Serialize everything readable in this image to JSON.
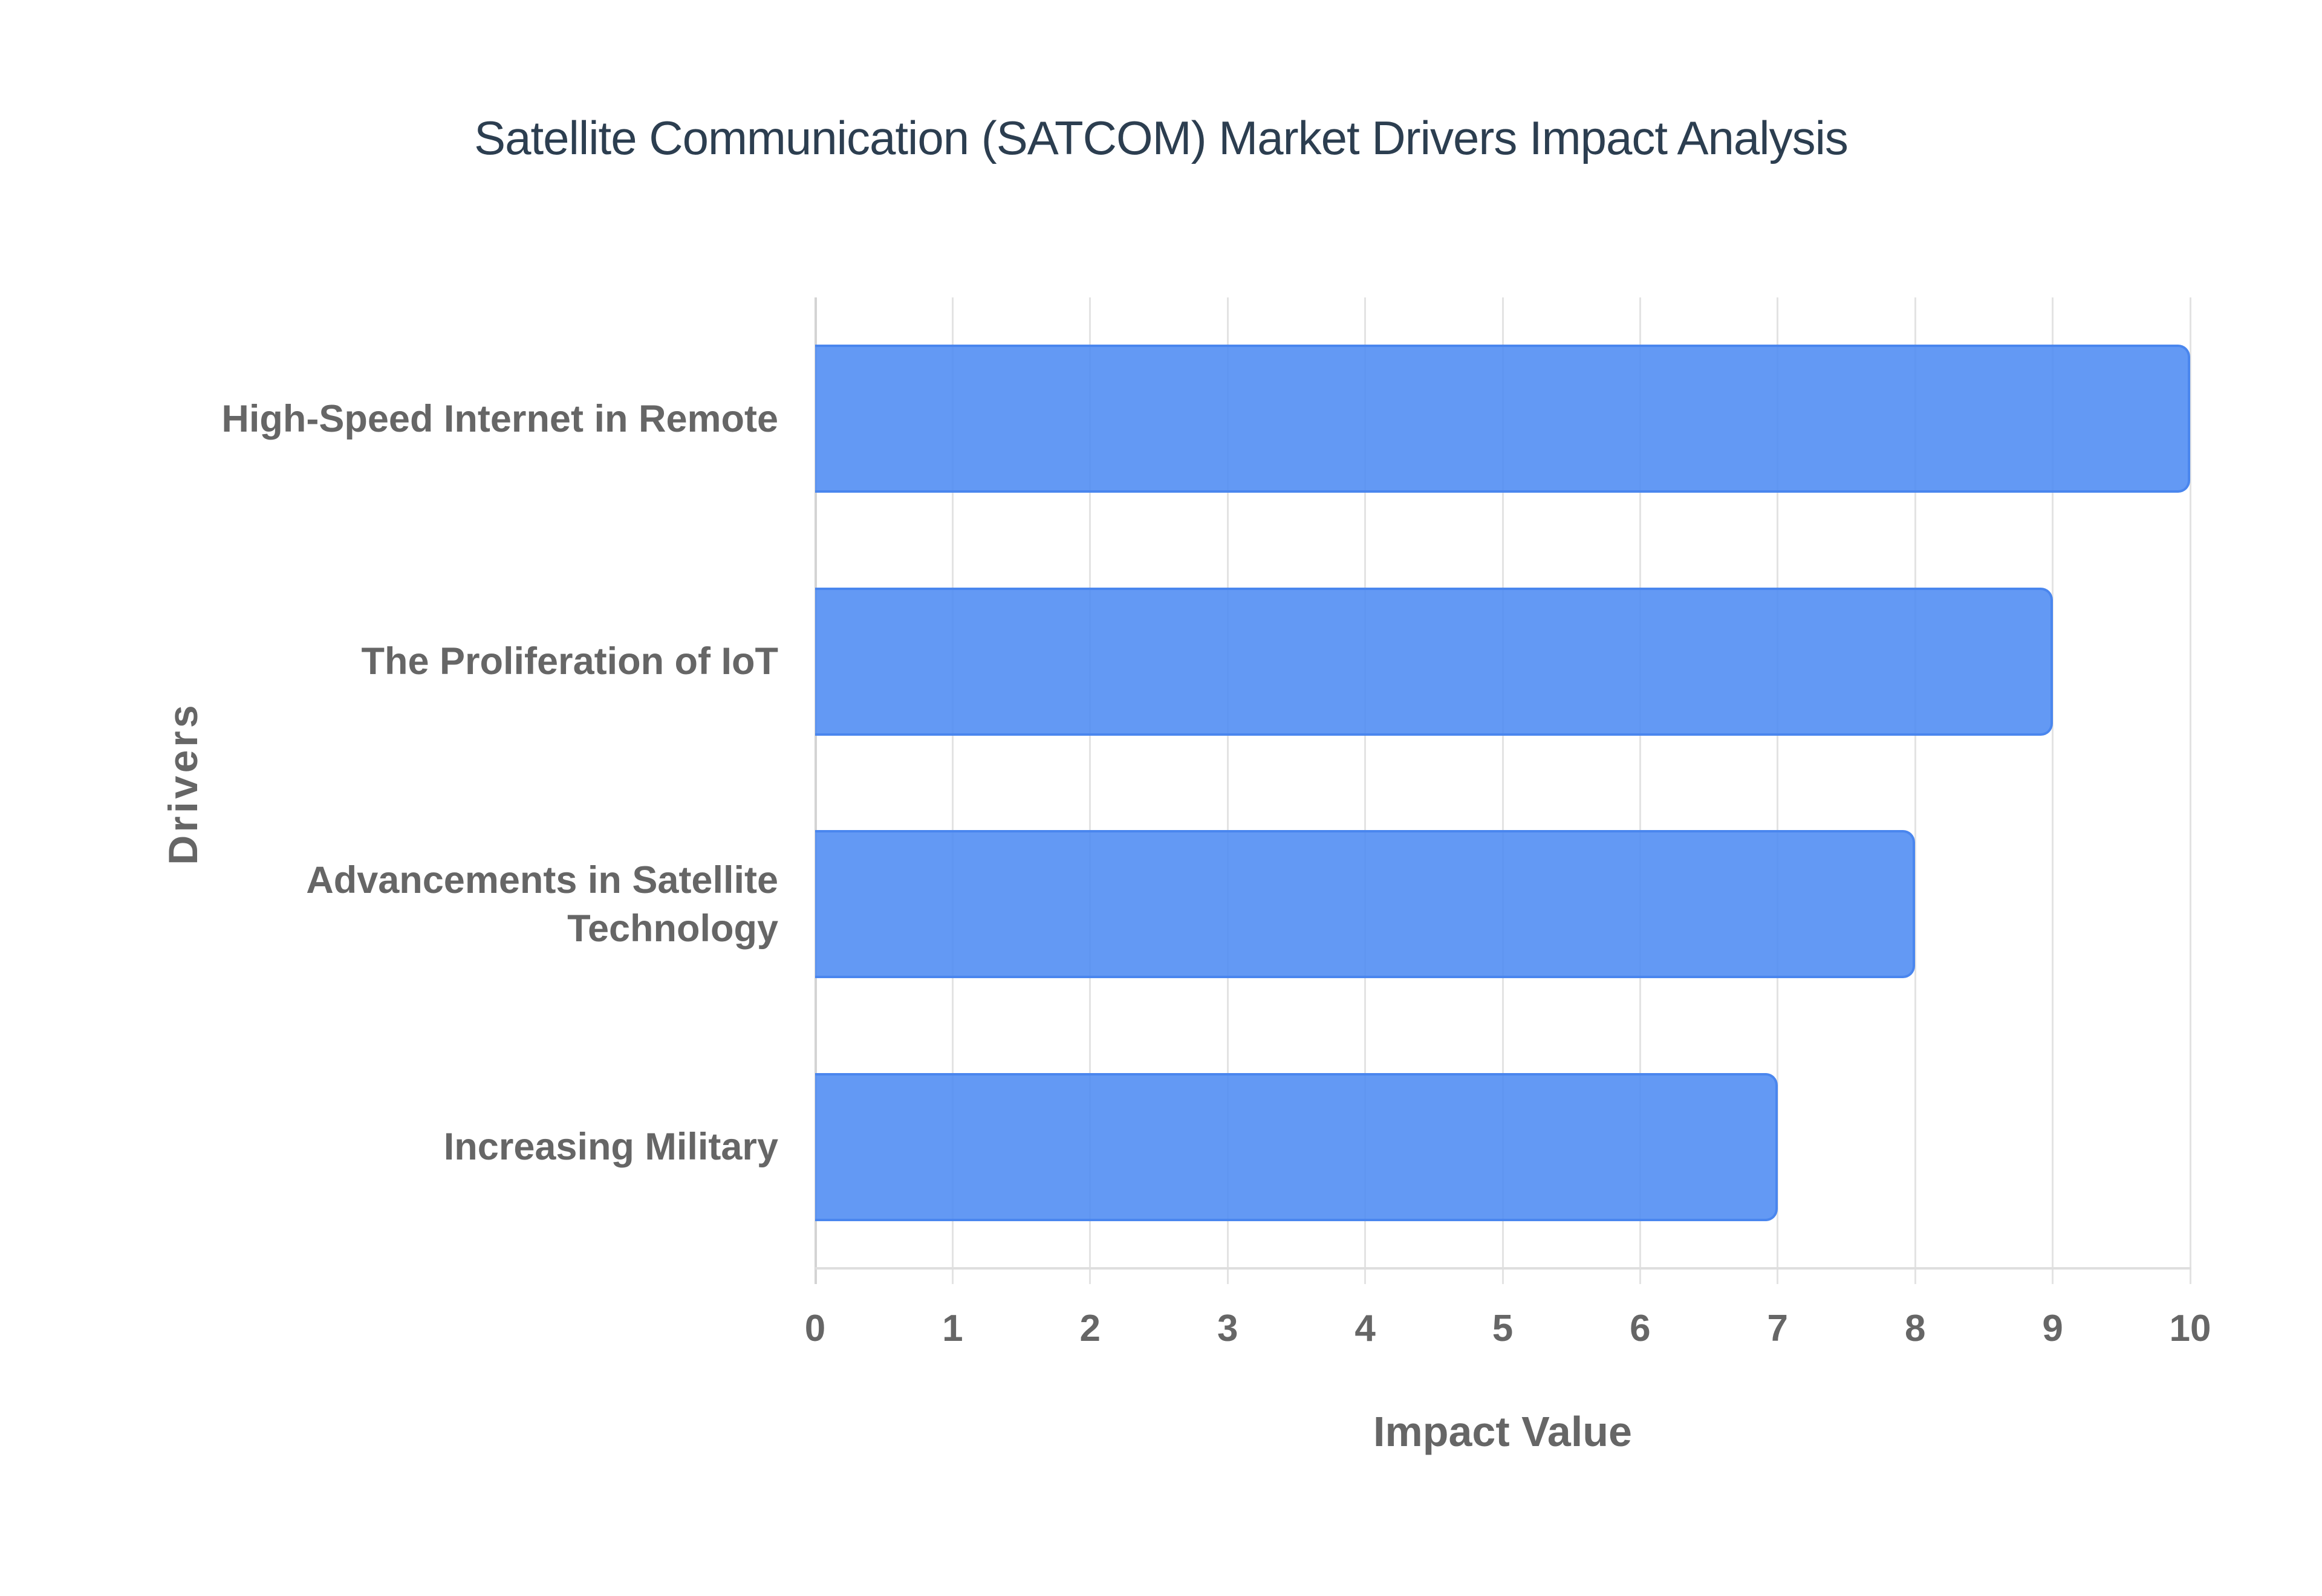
{
  "chart_data": {
    "type": "bar",
    "orientation": "horizontal",
    "title": "Satellite Communication (SATCOM) Market Drivers Impact Analysis",
    "xlabel": "Impact Value",
    "ylabel": "Drivers",
    "categories": [
      "High-Speed Internet in Remote",
      "The Proliferation of IoT",
      "Advancements in Satellite Technology",
      "Increasing Military"
    ],
    "category_label_lines": [
      [
        "High-Speed Internet in Remote"
      ],
      [
        "The Proliferation of IoT"
      ],
      [
        "Advancements in Satellite",
        "Technology"
      ],
      [
        "Increasing Military"
      ]
    ],
    "values": [
      10,
      9,
      8,
      7
    ],
    "xlim": [
      0,
      10
    ],
    "xticks": [
      "0",
      "1",
      "2",
      "3",
      "4",
      "5",
      "6",
      "7",
      "8",
      "9",
      "10"
    ],
    "grid": true,
    "legend": null,
    "colors": {
      "bar_fill": "#629bf5",
      "bar_border": "#4a86ee",
      "title": "#2c3e50",
      "axis_text": "#666666",
      "grid": "#e3e3e3"
    }
  }
}
